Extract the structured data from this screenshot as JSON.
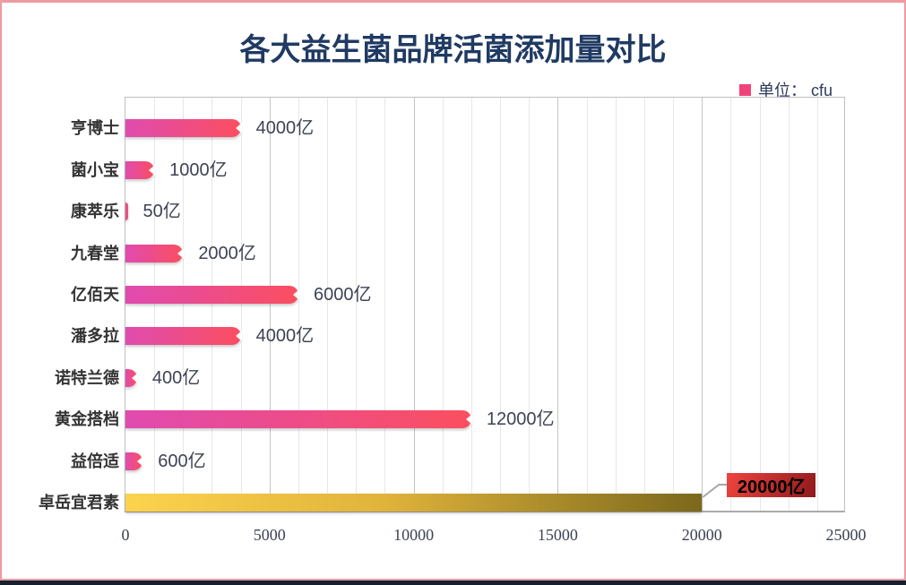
{
  "page": {
    "title": "各大益生菌品牌活菌添加量对比",
    "border_color": "#ee9aa2",
    "footer_strip_color": "#16202e"
  },
  "legend": {
    "label": "单位： cfu",
    "swatch_color": "#f0437b"
  },
  "chart_data": {
    "type": "bar",
    "orientation": "horizontal",
    "title": "各大益生菌品牌活菌添加量对比",
    "categories": [
      "亨博士",
      "菌小宝",
      "康萃乐",
      "九春堂",
      "亿佰天",
      "潘多拉",
      "诺特兰德",
      "黄金搭档",
      "益倍适",
      "卓岳宜君素"
    ],
    "values": [
      4000,
      1000,
      50,
      2000,
      6000,
      4000,
      400,
      12000,
      600,
      20000
    ],
    "labels": [
      "4000亿",
      "1000亿",
      "50亿",
      "2000亿",
      "6000亿",
      "4000亿",
      "400亿",
      "12000亿",
      "600亿",
      "20000亿"
    ],
    "unit": "cfu",
    "xlim": [
      0,
      25000
    ],
    "x_ticks": [
      "0",
      "5000",
      "10000",
      "15000",
      "20000",
      "25000"
    ],
    "grid_interval": 1000,
    "major_interval": 5000,
    "legend_position": "top-right",
    "bar_gradient": [
      "#e04bb0",
      "#fb4e5f"
    ],
    "highlight_index": 9,
    "highlight_gradient": [
      "#fcd34d",
      "#7b681b"
    ],
    "highlight_label": "20000亿"
  }
}
